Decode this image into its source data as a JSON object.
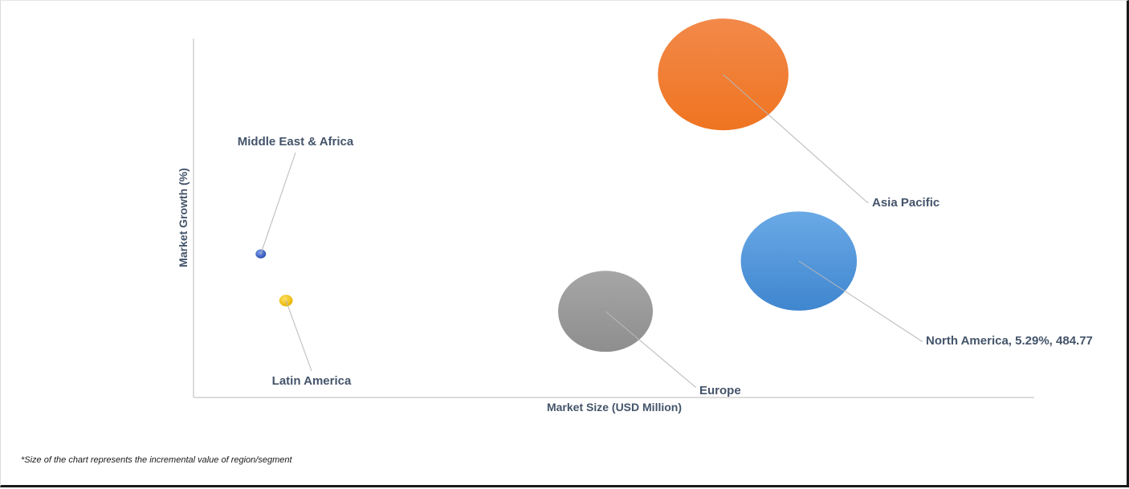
{
  "chart_data": {
    "type": "bubble",
    "xlabel": "Market Size (USD Million)",
    "ylabel": "Market Growth (%)",
    "grid": false,
    "points": [
      {
        "name": "Middle East & Africa",
        "label": "Middle East & Africa",
        "color": "#3a5fc8",
        "x": 8,
        "y": 40,
        "size": 1.2
      },
      {
        "name": "Latin America",
        "label": "Latin America",
        "color": "#f2c200",
        "x": 11,
        "y": 27,
        "size": 2.0
      },
      {
        "name": "Europe",
        "label": "Europe",
        "color": "#9a9a9a",
        "x": 49,
        "y": 24,
        "size": 100
      },
      {
        "name": "North America",
        "label": "North America, 5.29%, 484.77",
        "color": "#4a8fd6",
        "x": 72,
        "y": 38,
        "size": 150
      },
      {
        "name": "Asia Pacific",
        "label": "Asia Pacific",
        "color": "#f07a24",
        "x": 63,
        "y": 90,
        "size": 190
      }
    ]
  },
  "footnote": "*Size of the chart represents the incremental value of region/segment"
}
